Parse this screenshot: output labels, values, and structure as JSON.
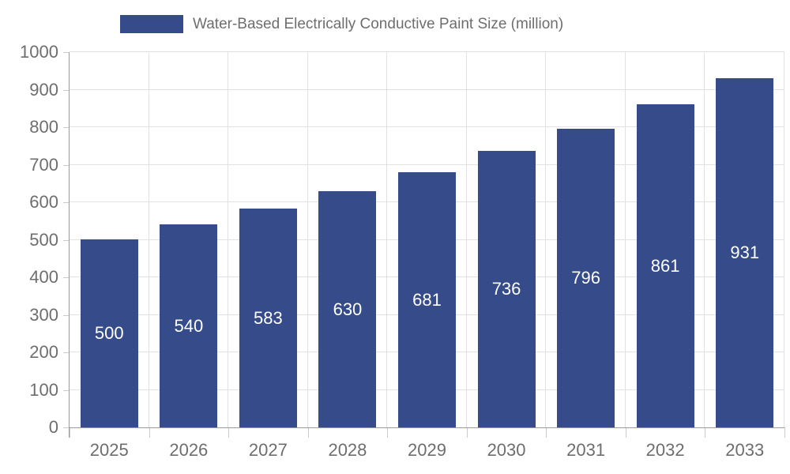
{
  "chart_data": {
    "type": "bar",
    "title": "Water-Based Electrically Conductive Paint Size (million)",
    "series": [
      {
        "name": "Water-Based Electrically Conductive Paint Size (million)",
        "values": [
          500,
          540,
          583,
          630,
          681,
          736,
          796,
          861,
          931
        ]
      }
    ],
    "categories": [
      "2025",
      "2026",
      "2027",
      "2028",
      "2029",
      "2030",
      "2031",
      "2032",
      "2033"
    ],
    "xlabel": "",
    "ylabel": "",
    "ylim": [
      0,
      1000
    ],
    "yticks": [
      0,
      100,
      200,
      300,
      400,
      500,
      600,
      700,
      800,
      900,
      1000
    ],
    "grid": true,
    "legend_position": "top",
    "bar_label_position": "inside-center"
  },
  "colors": {
    "bar": "#364B89",
    "bar_label": "#FFFFFF",
    "grid": "#E2E2E2",
    "axis": "#9B9B9B",
    "tick": "#CBCBCB",
    "axis_text": "#6E6E6E",
    "legend_text": "#6E6E6E",
    "background": "#FFFFFF"
  }
}
